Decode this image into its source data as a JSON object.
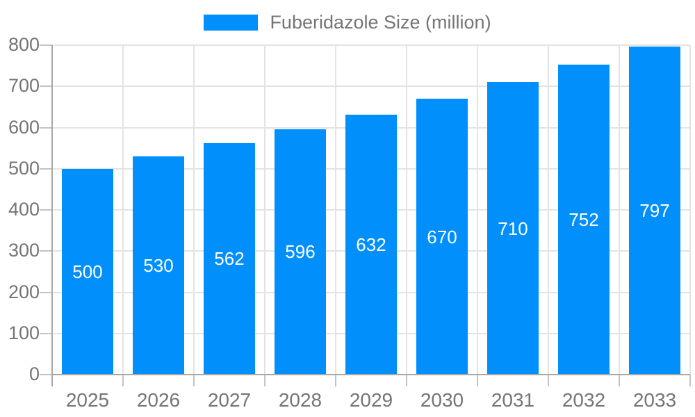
{
  "legend": {
    "label": "Fuberidazole Size (million)"
  },
  "colors": {
    "bar": "#008ffb",
    "grid": "#e3e3e3",
    "axis": "#a8a8a8",
    "tick": "#c4c4c4",
    "axis_label": "#757575",
    "value_label": "#ffffff",
    "background": "#ffffff"
  },
  "chart_data": {
    "type": "bar",
    "title": "",
    "xlabel": "",
    "ylabel": "",
    "legend": "Fuberidazole Size (million)",
    "legend_position": "top",
    "categories": [
      "2025",
      "2026",
      "2027",
      "2028",
      "2029",
      "2030",
      "2031",
      "2032",
      "2033"
    ],
    "values": [
      500,
      530,
      562,
      596,
      632,
      670,
      710,
      752,
      797
    ],
    "series": [
      {
        "name": "Fuberidazole Size (million)",
        "values": [
          500,
          530,
          562,
          596,
          632,
          670,
          710,
          752,
          797
        ]
      }
    ],
    "yticks": [
      0,
      100,
      200,
      300,
      400,
      500,
      600,
      700,
      800
    ],
    "ylim": [
      0,
      800
    ],
    "grid": true,
    "value_label_position": "inside-middle"
  }
}
